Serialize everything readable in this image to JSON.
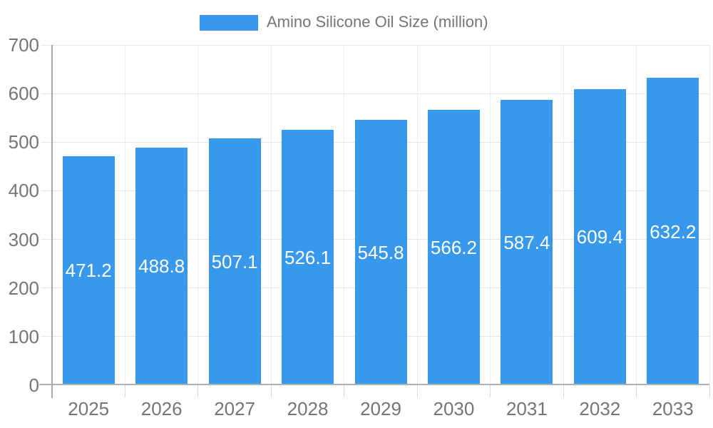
{
  "chart_data": {
    "type": "bar",
    "title": "",
    "legend": {
      "label": "Amino Silicone Oil Size (million)",
      "position": "top",
      "swatch_color": "#3898ec"
    },
    "categories": [
      "2025",
      "2026",
      "2027",
      "2028",
      "2029",
      "2030",
      "2031",
      "2032",
      "2033"
    ],
    "series": [
      {
        "name": "Amino Silicone Oil Size (million)",
        "color": "#3898ec",
        "values": [
          471.2,
          488.8,
          507.1,
          526.1,
          545.8,
          566.2,
          587.4,
          609.4,
          632.2
        ]
      }
    ],
    "value_labels": [
      "471.2",
      "488.8",
      "507.1",
      "526.1",
      "545.8",
      "566.2",
      "587.4",
      "609.4",
      "632.2"
    ],
    "xlabel": "",
    "ylabel": "",
    "ylim": [
      0,
      700
    ],
    "yticks": [
      0,
      100,
      200,
      300,
      400,
      500,
      600,
      700
    ],
    "grid": true
  },
  "colors": {
    "bar": "#3898ec",
    "value_label_text": "#ffffff",
    "axis_text": "#757575",
    "grid_horizontal": "#e6e6e6",
    "grid_vertical": "#ededed",
    "x_tick_mark": "#d9d9d9",
    "y_axis_line": "#a8a8a8",
    "x_axis_line": "#b0b0b0",
    "background": "#ffffff"
  }
}
